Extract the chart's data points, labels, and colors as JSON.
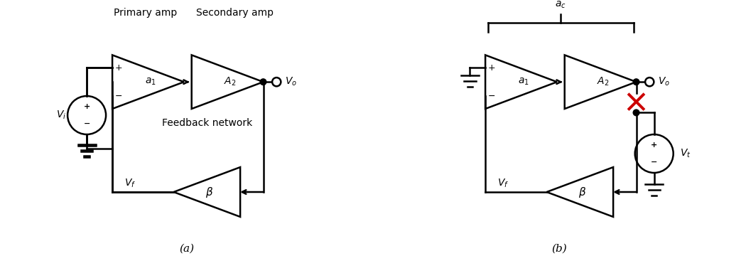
{
  "fig_width": 10.5,
  "fig_height": 3.6,
  "bg_color": "#ffffff",
  "line_color": "#000000",
  "red_color": "#cc0000",
  "label_a": "(a)",
  "label_b": "(b)",
  "title_a1": "Primary amp",
  "title_a2": "Secondary amp",
  "title_fb": "Feedback network",
  "label_a1": "$a_1$",
  "label_A2": "$A_2$",
  "label_beta": "$\\beta$",
  "label_Vi": "$V_i$",
  "label_Vo": "$V_o$",
  "label_Vf": "$V_f$",
  "label_Vt": "$V_t$",
  "label_ac": "$a_c$"
}
